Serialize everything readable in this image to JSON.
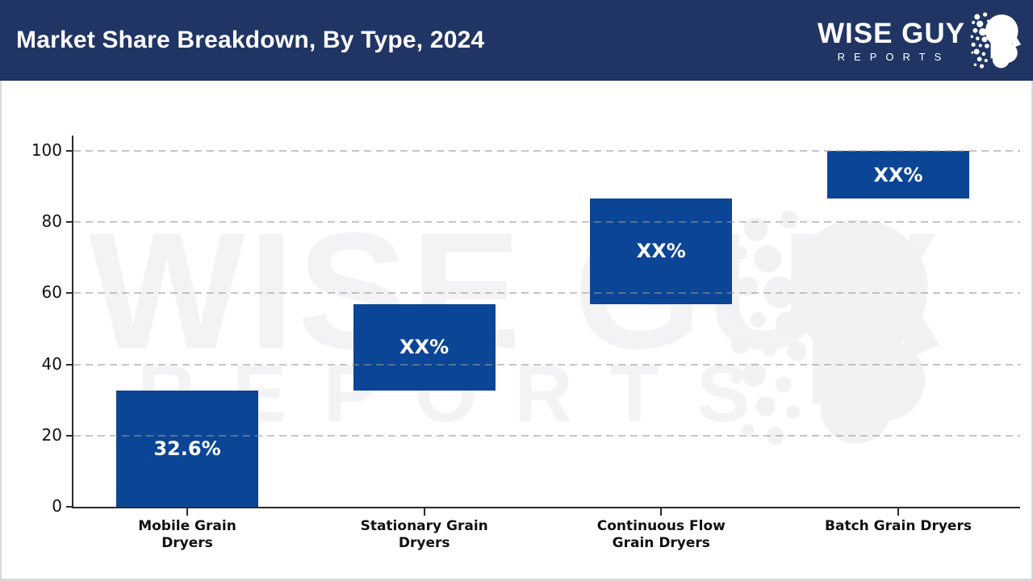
{
  "header": {
    "title": "Market Share Breakdown, By Type, 2024",
    "bg_color": "#213564",
    "logo": {
      "line1": "WISE GUY",
      "line2": "REPORTS"
    }
  },
  "watermark": {
    "line1": "WISE GUY",
    "line2": "REPORTS"
  },
  "chart_data": {
    "type": "bar",
    "subtype": "waterfall",
    "title": "Market Share Breakdown, By Type, 2024",
    "categories": [
      "Mobile Grain Dryers",
      "Stationary Grain Dryers",
      "Continuous Flow Grain Dryers",
      "Batch Grain Dryers"
    ],
    "category_label_lines": [
      [
        "Mobile Grain",
        "Dryers"
      ],
      [
        "Stationary Grain",
        "Dryers"
      ],
      [
        "Continuous Flow",
        "Grain Dryers"
      ],
      [
        "Batch Grain Dryers"
      ]
    ],
    "series": [
      {
        "name": "Market share (%)",
        "segments": [
          {
            "category": "Mobile Grain Dryers",
            "start": 0,
            "end": 32.6,
            "label": "32.6%"
          },
          {
            "category": "Stationary Grain Dryers",
            "start": 32.6,
            "end": 57,
            "label": "XX%"
          },
          {
            "category": "Continuous Flow Grain Dryers",
            "start": 57,
            "end": 86.6,
            "label": "XX%"
          },
          {
            "category": "Batch Grain Dryers",
            "start": 86.6,
            "end": 100,
            "label": "XX%"
          }
        ]
      }
    ],
    "ylim": [
      0,
      100
    ],
    "yticks": [
      0,
      20,
      40,
      60,
      80,
      100
    ],
    "xlabel": "",
    "ylabel": "",
    "grid": true,
    "grid_style": "dashed-over-bars",
    "legend": "none",
    "bar_color": "#0B4596",
    "bar_label_color": "#FFFFFF",
    "axis_color": "#2B2B2B"
  }
}
